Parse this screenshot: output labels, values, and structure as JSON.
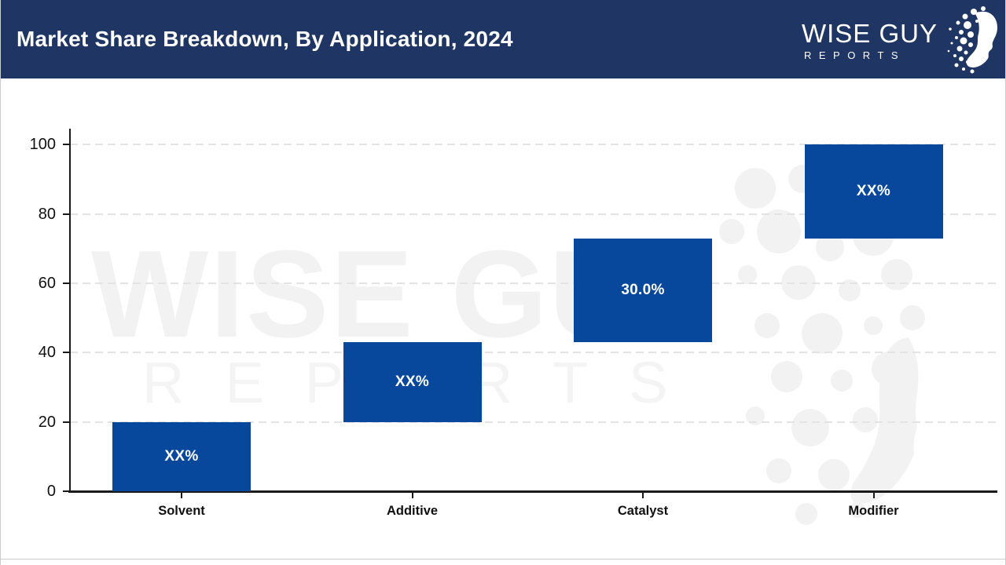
{
  "header": {
    "title": "Market Share Breakdown, By Application, 2024",
    "logo": {
      "line1": "WISE GUY",
      "line2": "REPORTS"
    }
  },
  "watermark": {
    "line1": "WISE GU",
    "line2": "REPORTS"
  },
  "chart_data": {
    "type": "bar",
    "subtype": "waterfall",
    "title": "Market Share Breakdown, By Application, 2024",
    "categories": [
      "Solvent",
      "Additive",
      "Catalyst",
      "Modifier"
    ],
    "series": [
      {
        "category": "Solvent",
        "start": 0,
        "end": 20,
        "label": "XX%"
      },
      {
        "category": "Additive",
        "start": 20,
        "end": 43,
        "label": "XX%"
      },
      {
        "category": "Catalyst",
        "start": 43,
        "end": 73,
        "label": "30.0%"
      },
      {
        "category": "Modifier",
        "start": 73,
        "end": 100,
        "label": "XX%"
      }
    ],
    "yticks": [
      0,
      20,
      40,
      60,
      80,
      100
    ],
    "ylim": [
      0,
      105
    ],
    "xlabel": "",
    "ylabel": "",
    "grid": "horizontal-dashed",
    "legend": "none",
    "bar_color": "#07489c"
  },
  "colors": {
    "header_bg": "#1f3564",
    "bar": "#07489c",
    "bar_label": "#ffffff",
    "axis": "#1a1a1a",
    "grid": "#e3e3e3",
    "watermark": "#f2f2f2",
    "frame_border": "#cccccc"
  }
}
